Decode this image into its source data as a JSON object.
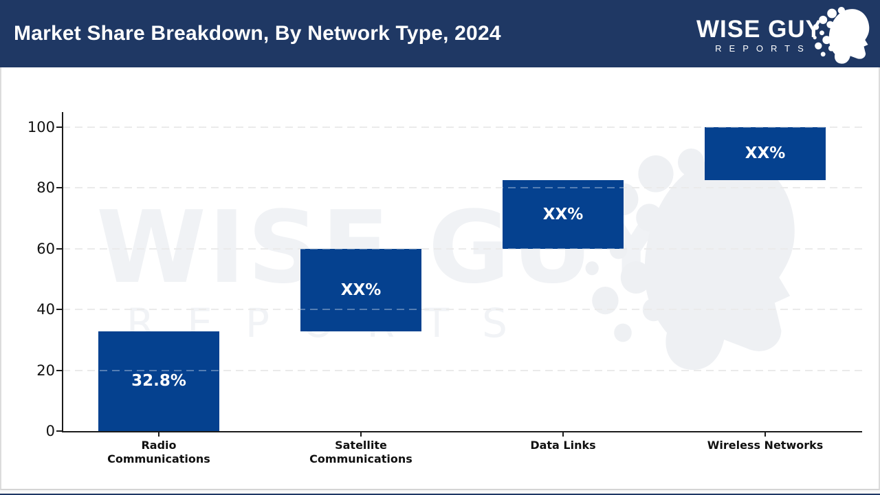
{
  "header": {
    "title": "Market Share Breakdown, By Network Type, 2024",
    "logo": {
      "line1": "WISE GUY",
      "line2": "REPORTS"
    }
  },
  "watermark": {
    "line1": "WISE GUY",
    "line2": "REPORTS"
  },
  "chart_data": {
    "type": "bar",
    "subtype": "waterfall",
    "title": "Market Share Breakdown, By Network Type, 2024",
    "categories": [
      "Radio Communications",
      "Satellite Communications",
      "Data Links",
      "Wireless Networks"
    ],
    "category_lines": [
      [
        "Radio",
        "Communications"
      ],
      [
        "Satellite",
        "Communications"
      ],
      [
        "Data Links"
      ],
      [
        "Wireless Networks"
      ]
    ],
    "bars": [
      {
        "category": "Radio Communications",
        "start": 0,
        "end": 32.8,
        "label": "32.8%"
      },
      {
        "category": "Satellite Communications",
        "start": 32.8,
        "end": 60,
        "label": "XX%"
      },
      {
        "category": "Data Links",
        "start": 60,
        "end": 82.5,
        "label": "XX%"
      },
      {
        "category": "Wireless Networks",
        "start": 82.5,
        "end": 100,
        "label": "XX%"
      }
    ],
    "yticks": [
      0,
      20,
      40,
      60,
      80,
      100
    ],
    "ylim": [
      0,
      100
    ],
    "xlabel": "",
    "ylabel": "",
    "grid": "dashed-horizontal",
    "legend": false,
    "bar_color": "#05418f"
  },
  "colors": {
    "header_bg": "#1f3864",
    "bar": "#05418f",
    "watermark": "#f0f2f5",
    "grid": "#e1e1e1",
    "axis": "#1a1a1a",
    "card_border": "#dcdcdc"
  }
}
